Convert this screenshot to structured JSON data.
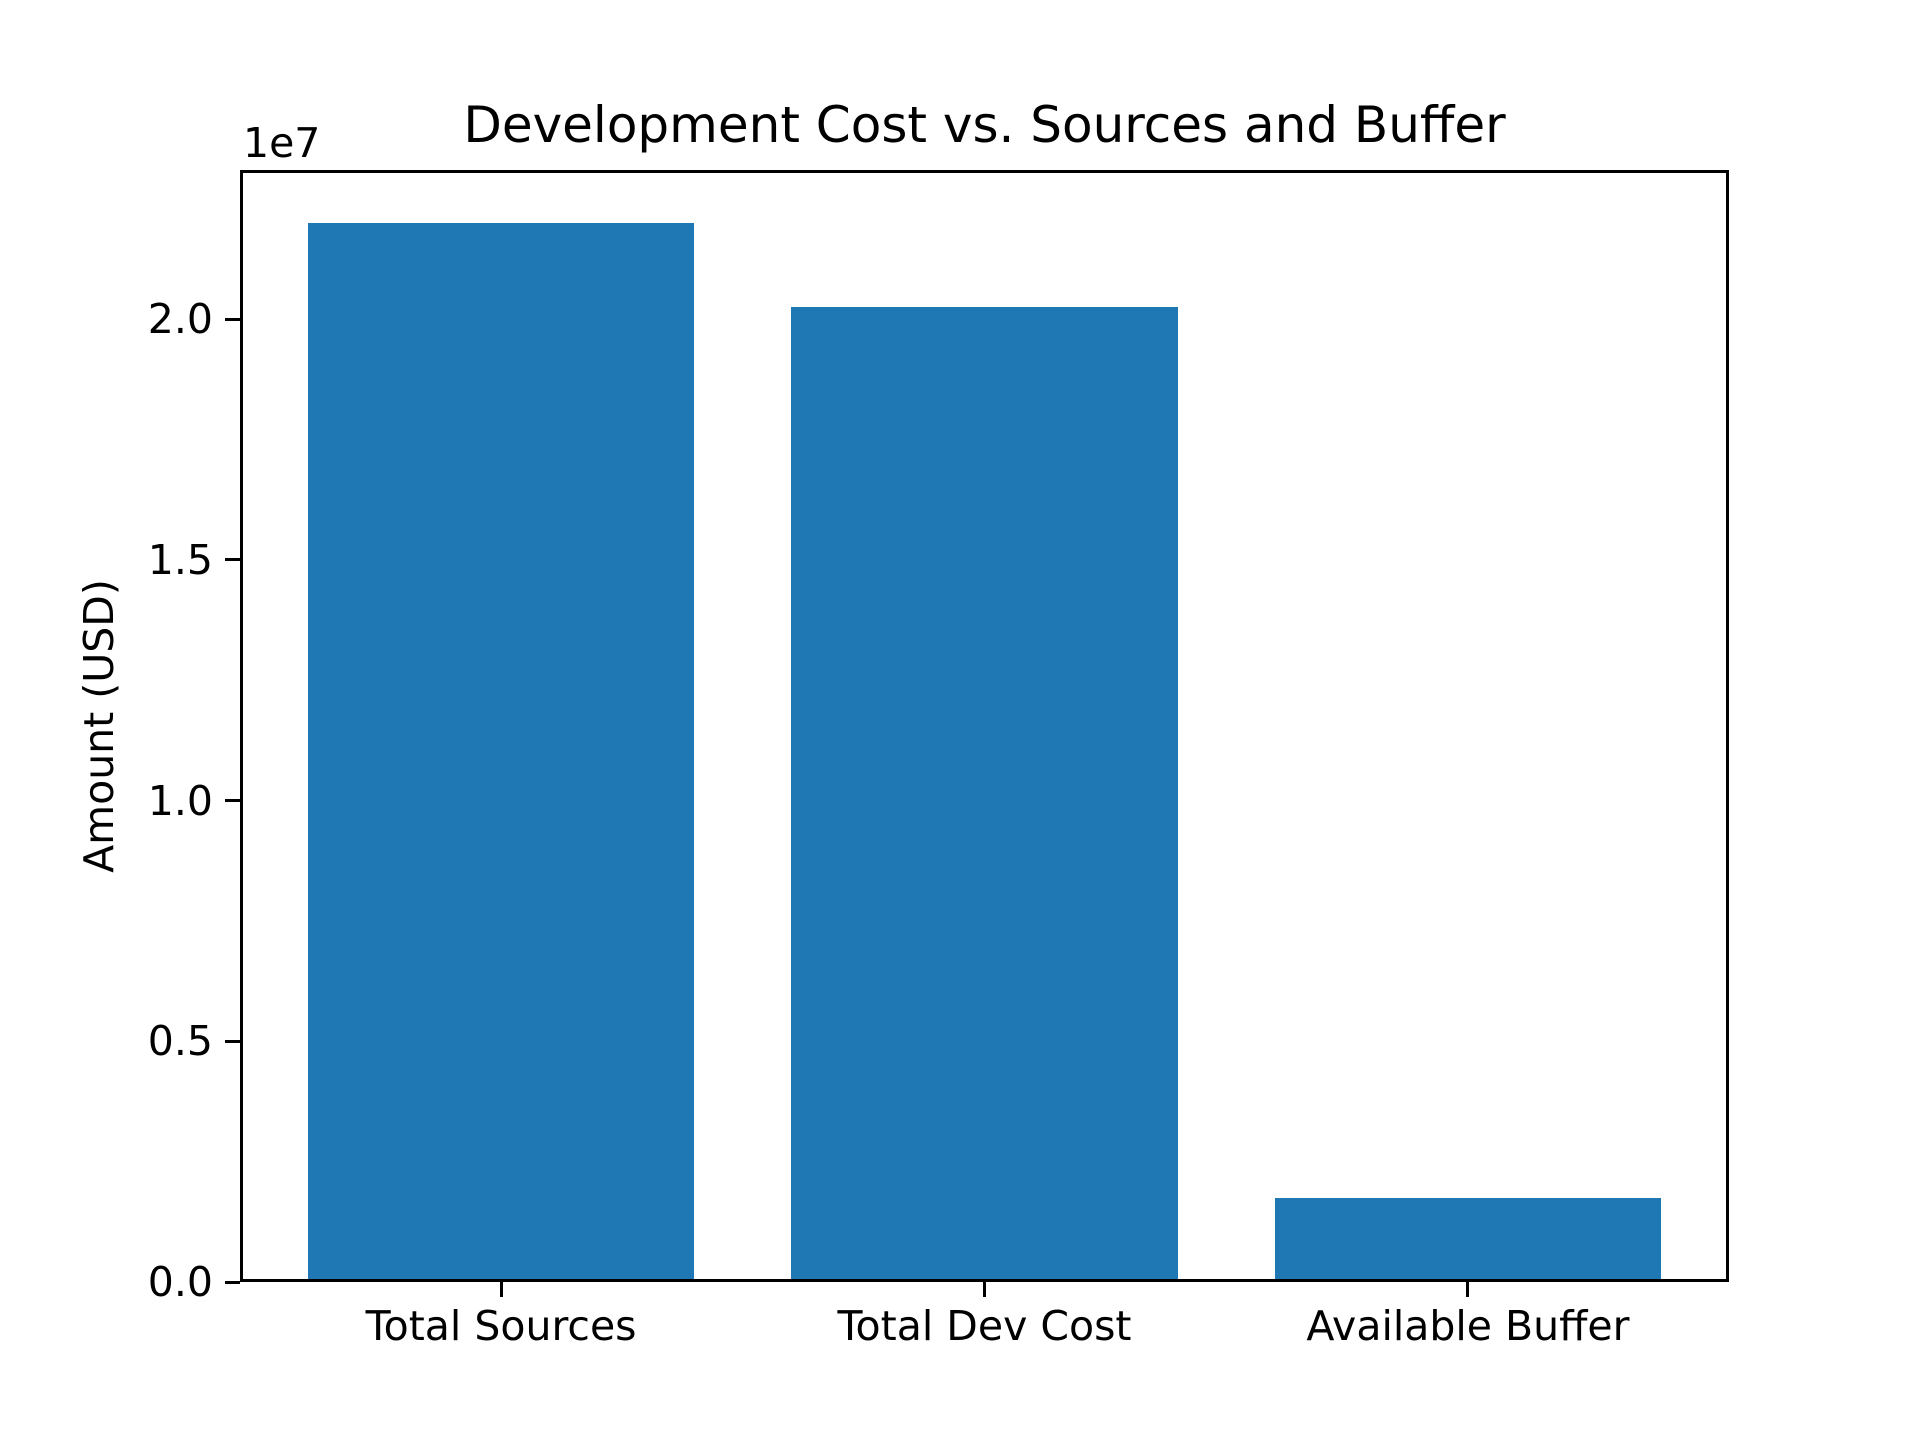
{
  "figure": {
    "background": "#ffffff"
  },
  "chart_data": {
    "type": "bar",
    "title": "Development Cost vs. Sources and Buffer",
    "categories": [
      "Total Sources",
      "Total Dev Cost",
      "Available Buffer"
    ],
    "values": [
      22000000,
      20250000,
      1750000
    ],
    "xlabel": "",
    "ylabel": "Amount (USD)",
    "y_offset_text": "1e7",
    "ylim": [
      0,
      23100000
    ],
    "yticks": [
      0,
      5000000,
      10000000,
      15000000,
      20000000
    ],
    "ytick_labels": [
      "0.0",
      "0.5",
      "1.0",
      "1.5",
      "2.0"
    ],
    "bar_color": "#1f77b4",
    "axis_color": "#000000",
    "grid": false,
    "legend": false
  }
}
